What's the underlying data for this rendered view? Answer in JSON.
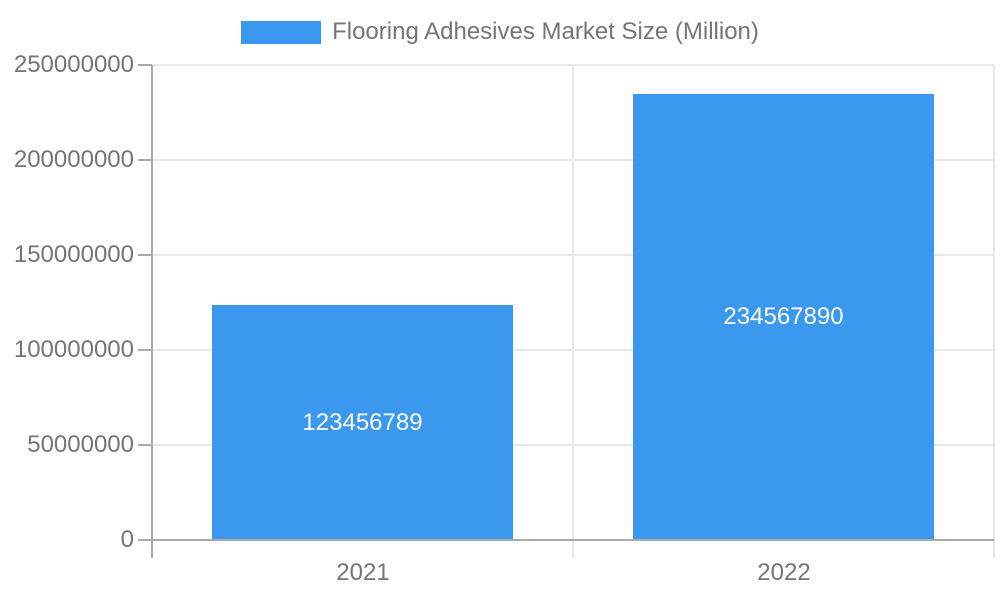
{
  "chart_data": {
    "type": "bar",
    "title": "Flooring Adhesives Market Size (Million)",
    "categories": [
      "2021",
      "2022"
    ],
    "values": [
      123456789,
      234567890
    ],
    "value_labels": [
      "123456789",
      "234567890"
    ],
    "ylim": [
      0,
      250000000
    ],
    "ytick_step": 50000000,
    "ytick_labels": [
      "0",
      "50000000",
      "100000000",
      "150000000",
      "200000000",
      "250000000"
    ],
    "legend_position": "top-center",
    "grid": true,
    "colors": {
      "bar": "#3A99EF",
      "bar_value_text": "#FFFFFF",
      "axis": "#AAAAAA",
      "grid": "#E8E8E8",
      "tick_text": "#757575"
    }
  }
}
